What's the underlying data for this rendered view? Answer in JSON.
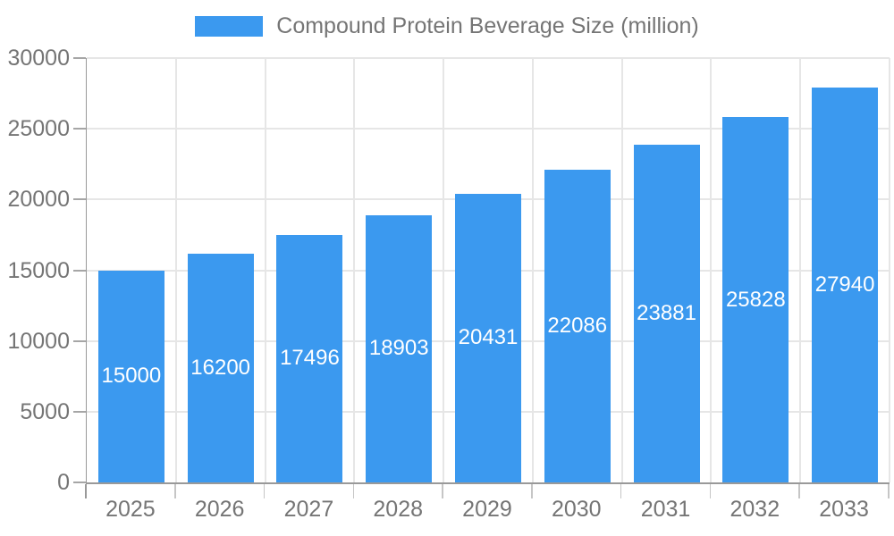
{
  "legend": {
    "label": "Compound Protein Beverage Size (million)"
  },
  "chart_data": {
    "type": "bar",
    "title": "Compound Protein Beverage Size (million)",
    "series_name": "Compound Protein Beverage Size (million)",
    "categories": [
      "2025",
      "2026",
      "2027",
      "2028",
      "2029",
      "2030",
      "2031",
      "2032",
      "2033"
    ],
    "values": [
      15000,
      16200,
      17496,
      18903,
      20431,
      22086,
      23881,
      25828,
      27940
    ],
    "xlabel": "",
    "ylabel": "",
    "ylim": [
      0,
      30000
    ],
    "yticks": [
      0,
      5000,
      10000,
      15000,
      20000,
      25000,
      30000
    ],
    "grid": true,
    "legend_position": "top-center",
    "bar_label_position": "inside-center",
    "colors": {
      "bar": "#3B99EF",
      "bar_label": "#FFFFFF",
      "axis_text": "#757575",
      "grid_line": "#E6E6E6",
      "axis_line": "#999999",
      "tick": "#C6C6C6",
      "background": "#FFFFFF"
    }
  }
}
